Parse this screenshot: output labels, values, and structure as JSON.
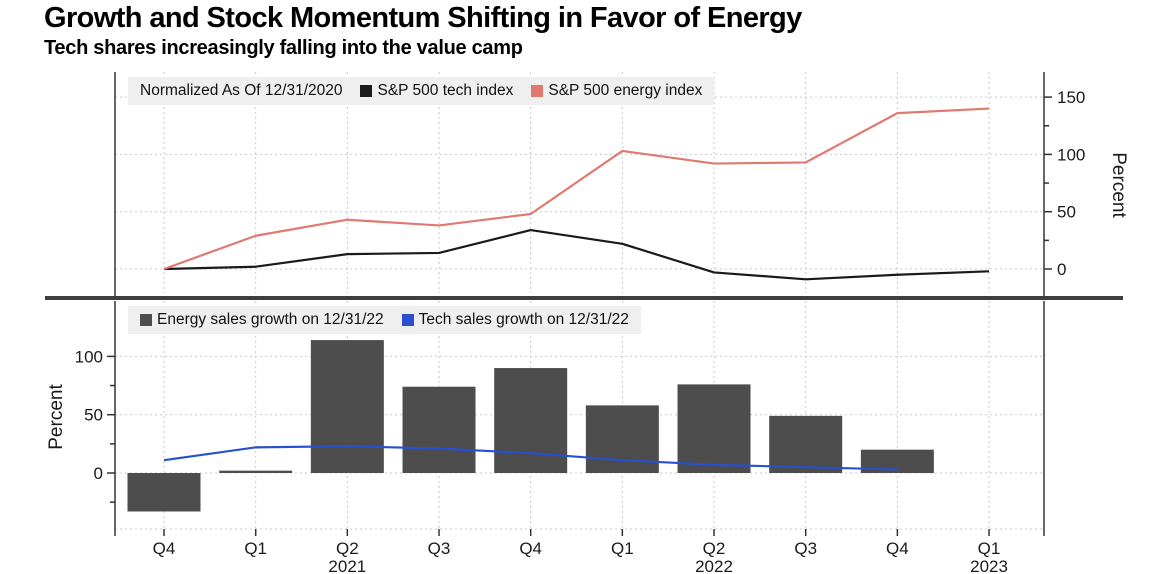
{
  "header": {
    "title": "Growth and Stock Momentum Shifting in Favor of Energy",
    "subtitle": "Tech shares increasingly falling into the value camp"
  },
  "chart_data": [
    {
      "type": "line",
      "panel": "top",
      "legend_note": "Normalized As Of 12/31/2020",
      "legend_position": "top-left",
      "categories": [
        "Q4",
        "Q1",
        "Q2",
        "Q3",
        "Q4",
        "Q1",
        "Q2",
        "Q3",
        "Q4",
        "Q1"
      ],
      "series": [
        {
          "name": "S&P 500 tech index",
          "color": "#1a1a1a",
          "values": [
            0,
            2,
            13,
            14,
            34,
            22,
            -3,
            -9,
            -5,
            -2
          ]
        },
        {
          "name": "S&P 500 energy index",
          "color": "#e0796f",
          "values": [
            0,
            29,
            43,
            38,
            48,
            103,
            92,
            93,
            136,
            140
          ]
        }
      ],
      "ylabel": "Percent",
      "y_ticks": [
        0,
        50,
        100,
        150
      ],
      "y_minor_ticks": [
        25,
        75,
        125
      ],
      "ylim": [
        -21,
        172
      ],
      "axis_side": "right",
      "grid": true
    },
    {
      "type": "bar",
      "panel": "bottom",
      "legend_position": "top-left",
      "categories": [
        "Q4",
        "Q1",
        "Q2",
        "Q3",
        "Q4",
        "Q1",
        "Q2",
        "Q3",
        "Q4",
        "Q1"
      ],
      "year_labels": [
        {
          "index": 2,
          "label": "2021"
        },
        {
          "index": 6,
          "label": "2022"
        },
        {
          "index": 9,
          "label": "2023"
        }
      ],
      "series": [
        {
          "name": "Energy sales growth on 12/31/22",
          "type": "bar",
          "color": "#4d4d4d",
          "values": [
            -33,
            2,
            114,
            74,
            90,
            58,
            76,
            49,
            20,
            null
          ]
        },
        {
          "name": "Tech sales growth on 12/31/22",
          "type": "line",
          "color": "#2850cf",
          "values": [
            11,
            22,
            23,
            21,
            17,
            11,
            7,
            5,
            3,
            null
          ]
        }
      ],
      "ylabel": "Percent",
      "y_ticks": [
        0,
        50,
        100
      ],
      "y_minor_ticks": [
        -25,
        25,
        75
      ],
      "ylim": [
        -48,
        147
      ],
      "axis_side": "left",
      "grid": true
    }
  ]
}
